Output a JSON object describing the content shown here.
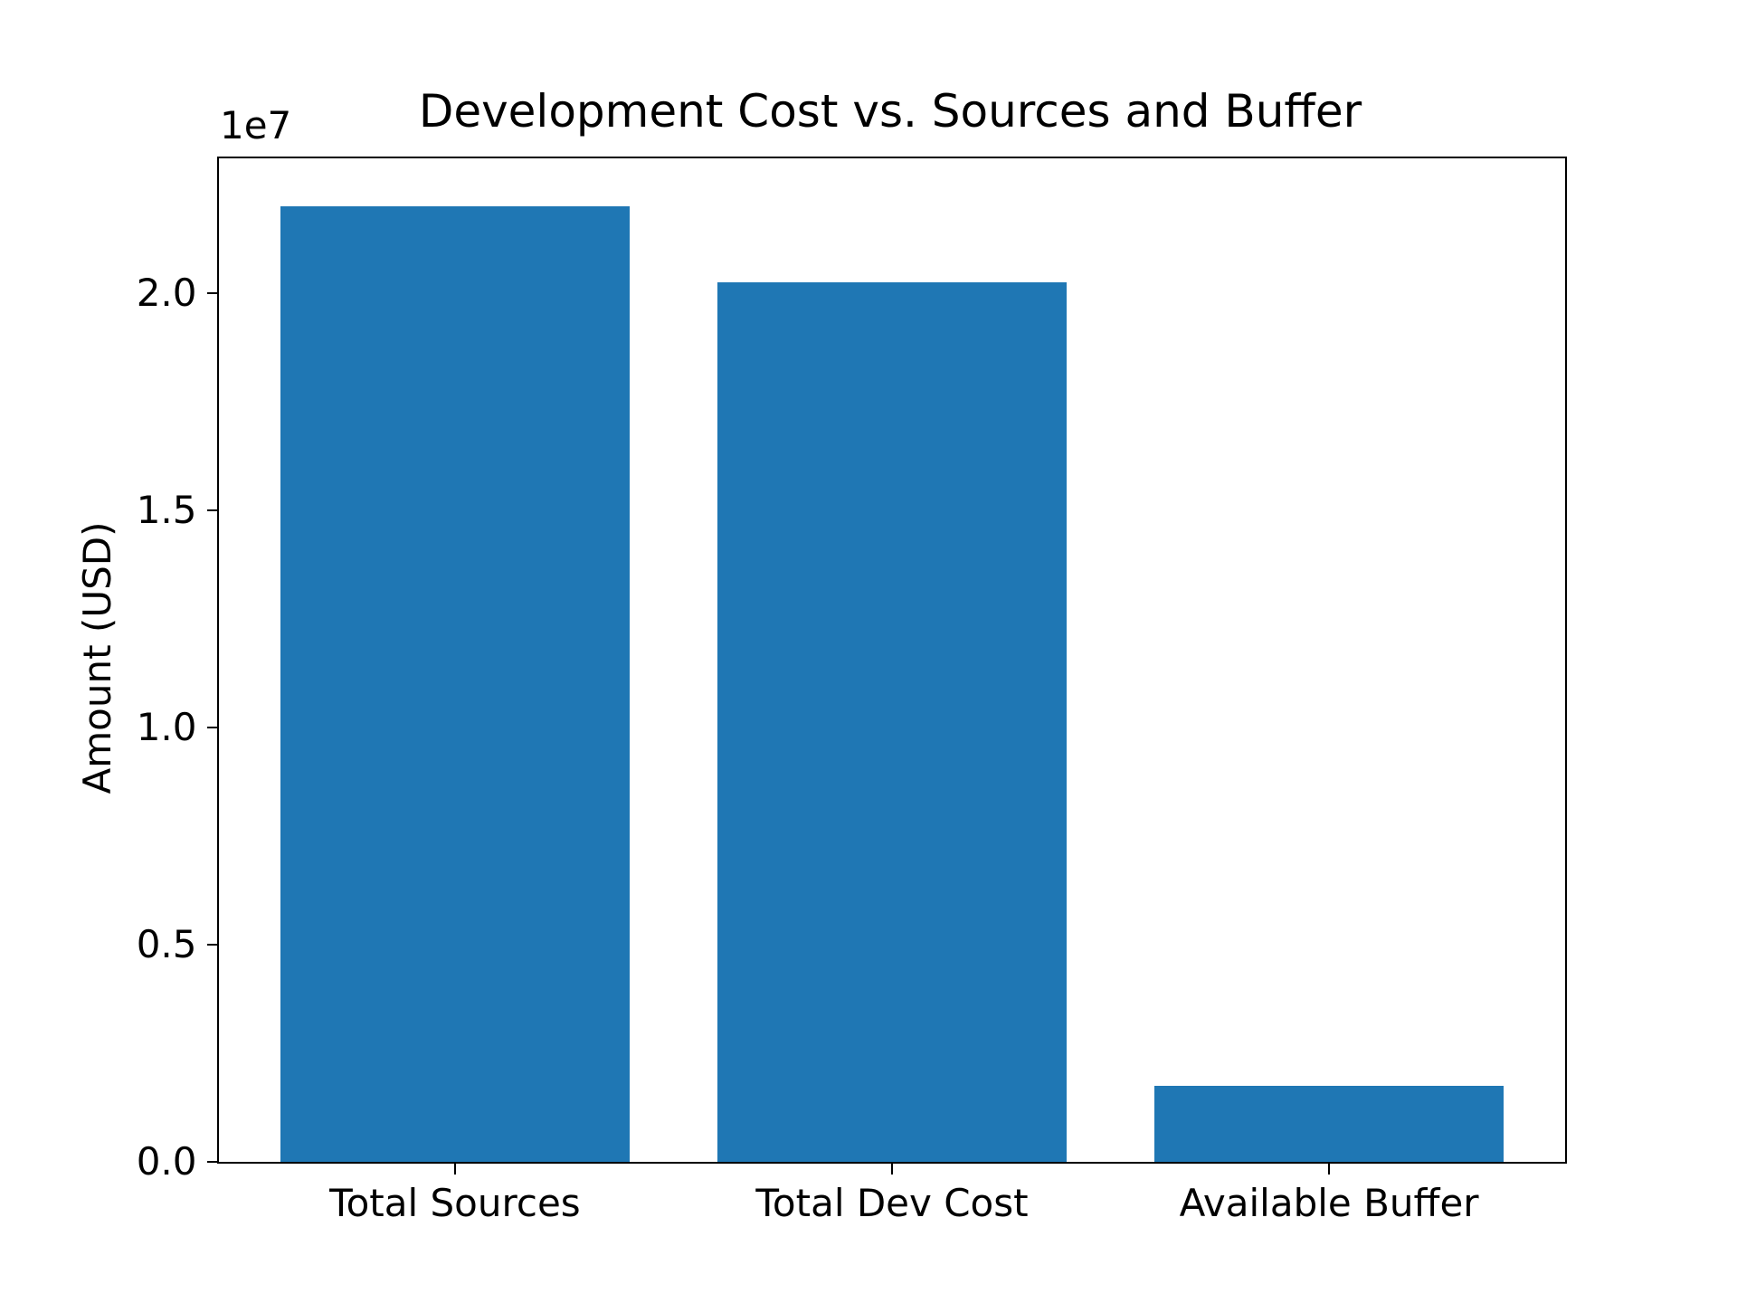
{
  "chart_data": {
    "type": "bar",
    "title": "Development Cost vs. Sources and Buffer",
    "categories": [
      "Total Sources",
      "Total Dev Cost",
      "Available Buffer"
    ],
    "values": [
      22000000,
      20250000,
      1750000
    ],
    "xlabel": "",
    "ylabel": "Amount (USD)",
    "offset_text": "1e7",
    "ylim": [
      0,
      23100000
    ],
    "xlim": [
      -0.54,
      2.54
    ],
    "yticks": [
      0,
      5000000,
      10000000,
      15000000,
      20000000
    ],
    "ytick_labels": [
      "0.0",
      "0.5",
      "1.0",
      "1.5",
      "2.0"
    ],
    "bar_width": 0.8,
    "bar_color": "#1f77b4",
    "text_color": "#000000",
    "grid": false,
    "legend": null
  }
}
